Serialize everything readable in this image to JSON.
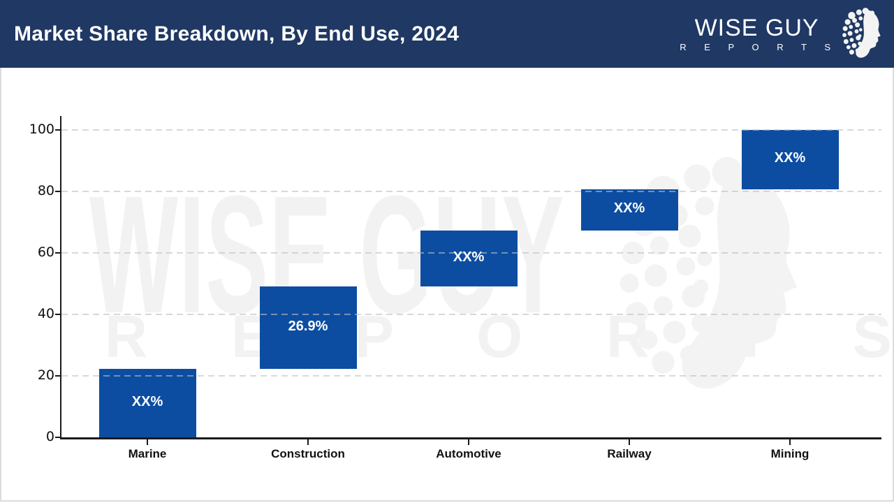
{
  "header": {
    "title": "Market Share Breakdown, By End Use, 2024",
    "logo": {
      "name_line": "WISE GUY",
      "sub_line": "REPORTS"
    }
  },
  "watermark": {
    "name_line": "WISE GUY",
    "sub_line": "R E P O R T S"
  },
  "colors": {
    "header_bg": "#1f3864",
    "bar": "#0c4da2",
    "bar_label_text": "#ffffff",
    "axis": "#1a1a1a",
    "gridline": "#d9d9d9",
    "watermark": "#f2f2f2"
  },
  "chart_data": {
    "type": "bar",
    "subtype": "waterfall-stacked",
    "title": "Market Share Breakdown, By End Use, 2024",
    "categories": [
      "Marine",
      "Construction",
      "Automotive",
      "Railway",
      "Mining"
    ],
    "values": [
      22.3,
      26.9,
      18.1,
      13.4,
      19.3
    ],
    "cumulative": [
      [
        0,
        22.3
      ],
      [
        22.3,
        49.2
      ],
      [
        49.2,
        67.3
      ],
      [
        67.3,
        80.7
      ],
      [
        80.7,
        100
      ]
    ],
    "bar_labels": [
      "XX%",
      "26.9%",
      "XX%",
      "XX%",
      "XX%"
    ],
    "xlabel": "",
    "ylabel": "",
    "ylim": [
      0,
      104
    ],
    "yticks": [
      0,
      20,
      40,
      60,
      80,
      100
    ],
    "grid": "dashed horizontal, drawn over bars",
    "legend": "none",
    "total": 100
  }
}
